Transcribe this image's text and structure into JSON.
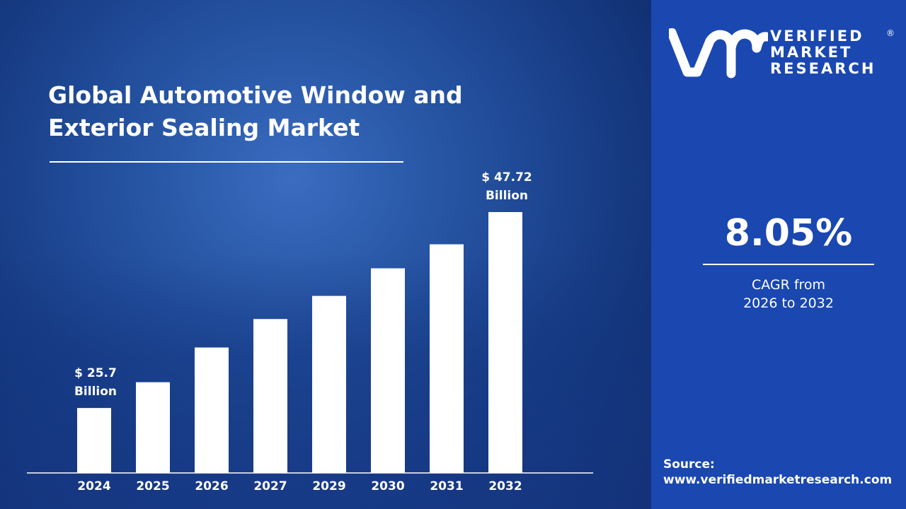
{
  "title_line1": "Global Automotive Window and",
  "title_line2": "Exterior Sealing Market",
  "brand": {
    "line1": "VERIFIED",
    "line2": "MARKET",
    "line3": "RESEARCH",
    "registered": "®"
  },
  "cagr": {
    "value": "8.05%",
    "line1": "CAGR from",
    "line2": "2026 to 2032"
  },
  "source": {
    "label": "Source:",
    "url": "www.verifiedmarketresearch.com"
  },
  "colors": {
    "panel": "#1a47b0",
    "bars": "#ffffff",
    "background": "#1e4a96"
  },
  "chart_data": {
    "type": "bar",
    "categories": [
      "2024",
      "2025",
      "2026",
      "2027",
      "2029",
      "2030",
      "2031",
      "2032"
    ],
    "values": [
      25.7,
      28.6,
      32.5,
      35.7,
      38.3,
      41.4,
      44.1,
      47.72
    ],
    "data_labels": [
      {
        "category": "2024",
        "line1": "$ 25.7",
        "line2": "Billion"
      },
      {
        "category": "2032",
        "line1": "$ 47.72",
        "line2": "Billion"
      }
    ],
    "ylim": [
      18.4,
      50
    ],
    "grid": false,
    "legend": "none",
    "xlabel": "",
    "ylabel": ""
  }
}
